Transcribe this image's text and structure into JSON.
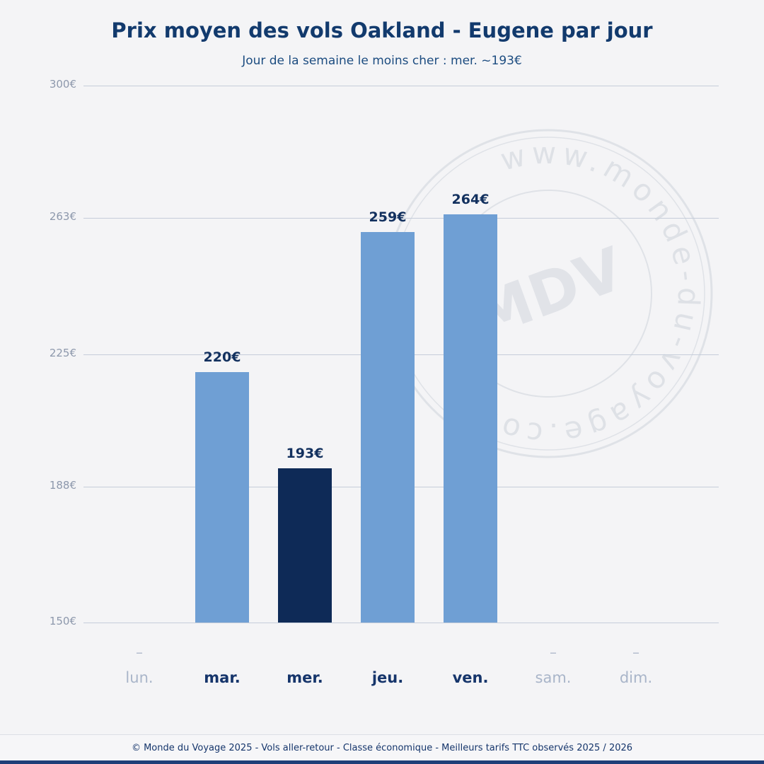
{
  "chart_data": {
    "type": "bar",
    "title": "Prix moyen des vols Oakland - Eugene par jour",
    "subtitle": "Jour de la semaine le moins cher : mer. ~193€",
    "categories": [
      "lun.",
      "mar.",
      "mer.",
      "jeu.",
      "ven.",
      "sam.",
      "dim."
    ],
    "values": [
      null,
      220,
      193,
      259,
      264,
      null,
      null
    ],
    "value_labels": [
      "",
      "220€",
      "193€",
      "259€",
      "264€",
      "",
      ""
    ],
    "empty_marker": "–",
    "highlight_index": 2,
    "highlight_reason": "cheapest day",
    "xlabel": "",
    "ylabel": "",
    "ylim": [
      150,
      300
    ],
    "yticks": [
      300,
      263,
      225,
      188,
      150
    ],
    "ytick_labels": [
      "300€",
      "263€",
      "225€",
      "188€",
      "150€"
    ],
    "currency": "€",
    "grid": true,
    "legend": false
  },
  "colors": {
    "bar": "#6f9fd4",
    "bar_highlight": "#0e2a57",
    "title": "#123a6d",
    "subtitle": "#1c4c80",
    "grid": "#c5cdda",
    "ytick": "#8d98ac",
    "active_day": "#16356b",
    "inactive_day": "#a9b5c9",
    "footer_text": "#15356b",
    "accent": "#1e3e78",
    "background": "#f4f4f6"
  },
  "watermark": {
    "ring_text": "www.monde-du-voyage.com",
    "center_text": "MDV"
  },
  "footer": {
    "text": "© Monde du Voyage 2025 - Vols aller-retour - Classe économique - Meilleurs tarifs TTC observés 2025 / 2026"
  }
}
